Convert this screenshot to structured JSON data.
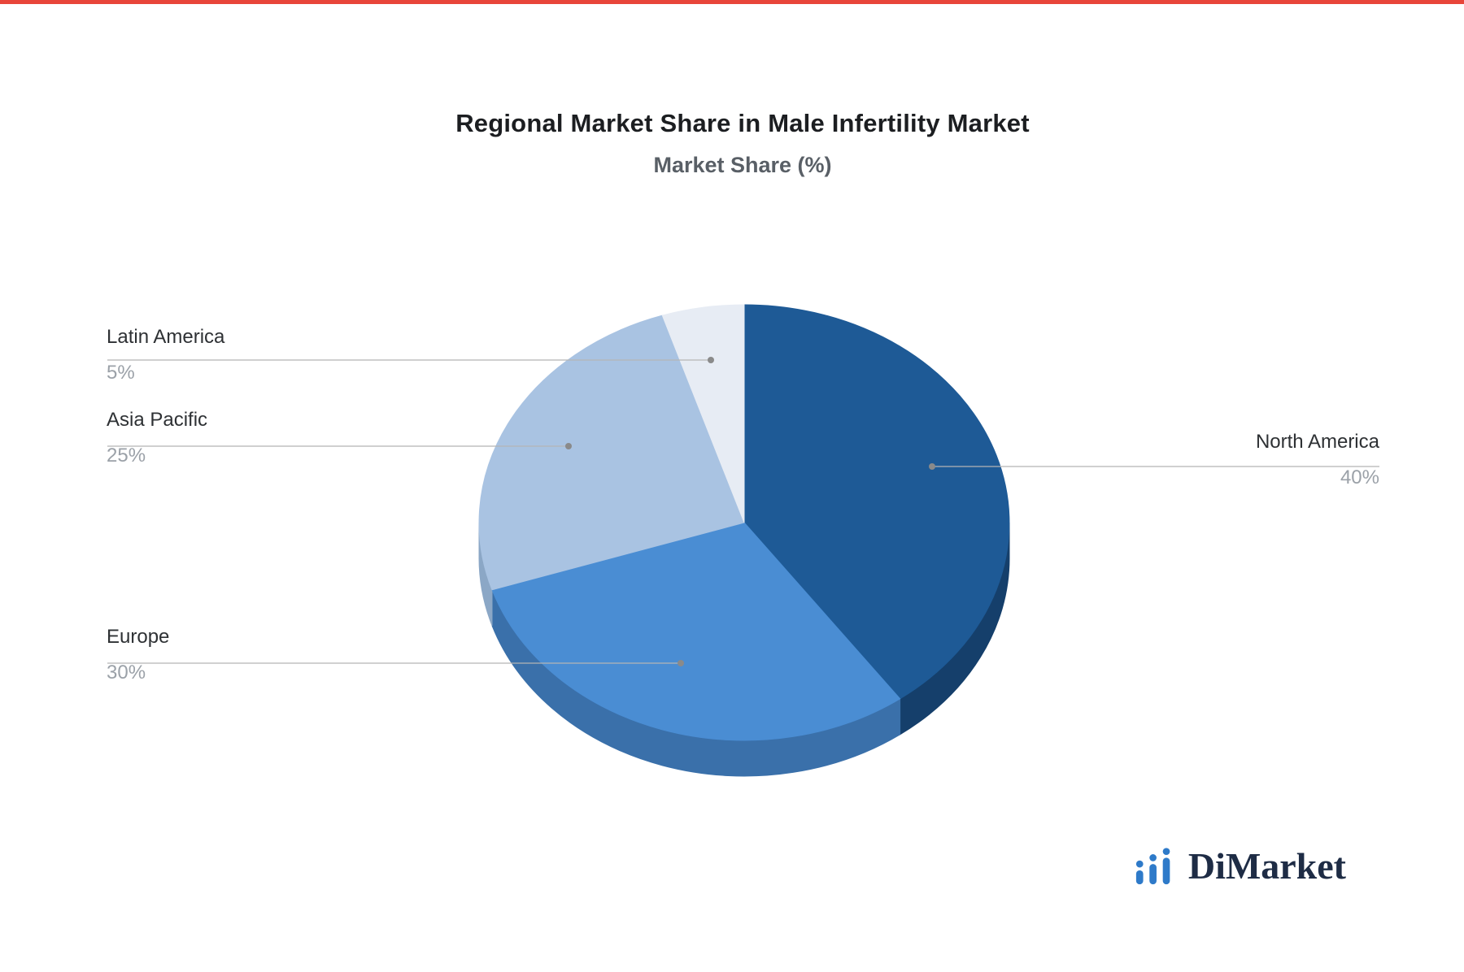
{
  "accent_strip_color": "#e8453a",
  "chart_data": {
    "type": "pie",
    "title": "Regional Market Share in Male Infertility Market",
    "subtitle": "Market Share (%)",
    "legend_position": "none",
    "style": "3d-pie",
    "slices": [
      {
        "label": "North America",
        "value": 40,
        "pct": "40%",
        "color": "#1e5a96",
        "side_color": "#153f6b"
      },
      {
        "label": "Europe",
        "value": 30,
        "pct": "30%",
        "color": "#4a8dd3",
        "side_color": "#3a70aa"
      },
      {
        "label": "Asia Pacific",
        "value": 25,
        "pct": "25%",
        "color": "#a9c3e2",
        "side_color": "#8ba7c6"
      },
      {
        "label": "Latin America",
        "value": 5,
        "pct": "5%",
        "color": "#e7ecf4",
        "side_color": "#cdd6e4"
      }
    ],
    "label_colors": {
      "name": "#2e3134",
      "value": "#9ba1a8"
    },
    "leader_line_color": "#b5b5b5",
    "leader_dot_color": "#8a8a8a"
  },
  "logo": {
    "text": "DiMarket",
    "icon": "bar-chart-icon",
    "text_color": "#1e2c45",
    "icon_color": "#2e7ac9"
  }
}
